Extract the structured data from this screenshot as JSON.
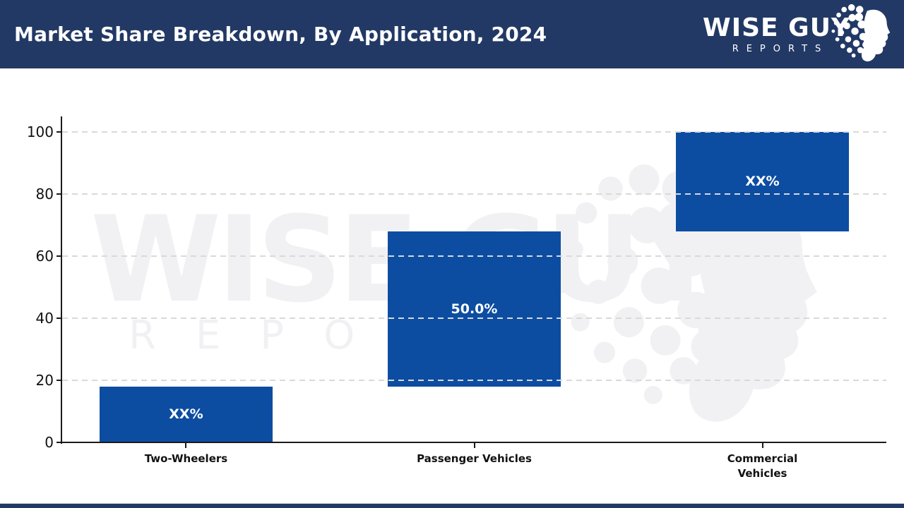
{
  "header": {
    "title": "Market Share Breakdown, By Application, 2024",
    "logo": {
      "line1": "WISE GUY",
      "line2": "REPORTS"
    },
    "bg_color": "#223965"
  },
  "watermark": {
    "line1": "WISE GUY",
    "line2": "REPORTS"
  },
  "chart_data": {
    "type": "bar",
    "subtype": "floating-waterfall",
    "title": "Market Share Breakdown, By Application, 2024",
    "categories": [
      {
        "label": "Two-Wheelers",
        "lines": [
          "Two-Wheelers"
        ]
      },
      {
        "label": "Passenger Vehicles",
        "lines": [
          "Passenger Vehicles"
        ]
      },
      {
        "label": "Commercial Vehicles",
        "lines": [
          "Commercial",
          "Vehicles"
        ]
      }
    ],
    "series": [
      {
        "name": "Market Share (%)",
        "segments": [
          {
            "category": "Two-Wheelers",
            "base": 0,
            "top": 18,
            "label": "XX%"
          },
          {
            "category": "Passenger Vehicles",
            "base": 18,
            "top": 68,
            "label": "50.0%"
          },
          {
            "category": "Commercial Vehicles",
            "base": 68,
            "top": 100,
            "label": "XX%"
          }
        ]
      }
    ],
    "yticks": [
      0,
      20,
      40,
      60,
      80,
      100
    ],
    "ylim": [
      0,
      105
    ],
    "xlabel": "",
    "ylabel": "",
    "grid": "horizontal-dashed",
    "legend": "none",
    "bar_color": "#0c4da2",
    "bar_label_color": "#ffffff",
    "grid_color": "#d9d9d9",
    "axis_color": "#1a1a1a"
  }
}
